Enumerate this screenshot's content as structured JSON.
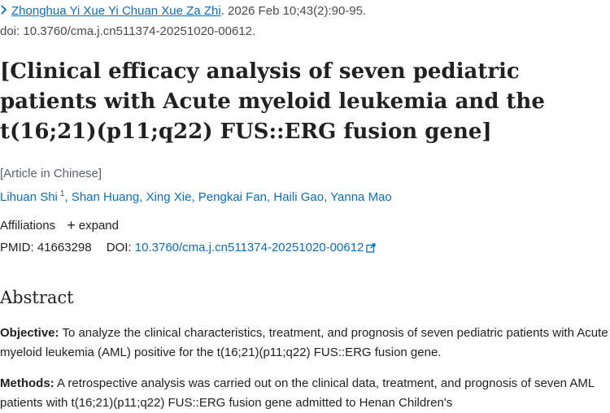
{
  "citation": {
    "journal": "Zhonghua Yi Xue Yi Chuan Xue Za Zhi",
    "details": ". 2026 Feb 10;43(2):90-95.",
    "doi_line": "doi: 10.3760/cma.j.cn511374-20251020-00612."
  },
  "title": "[Clinical efficacy analysis of seven pediatric patients with Acute myeloid leukemia and the t(16;21)(p11;q22) FUS::ERG fusion gene]",
  "language_note": "[Article in Chinese]",
  "authors": [
    {
      "name": "Lihuan Shi",
      "sup": "1"
    },
    {
      "name": "Shan Huang"
    },
    {
      "name": "Xing Xie"
    },
    {
      "name": "Pengkai Fan"
    },
    {
      "name": "Haili Gao"
    },
    {
      "name": "Yanna Mao"
    }
  ],
  "affiliations": {
    "label": "Affiliations",
    "expand": "expand"
  },
  "ids": {
    "pmid_label": "PMID:",
    "pmid": "41663298",
    "doi_label": "DOI:",
    "doi": "10.3760/cma.j.cn511374-20251020-00612"
  },
  "abstract": {
    "heading": "Abstract",
    "objective_label": "Objective:",
    "objective_text": "To analyze the clinical characteristics, treatment, and prognosis of seven pediatric patients with Acute myeloid leukemia (AML) positive for the t(16;21)(p11;q22) FUS::ERG fusion gene.",
    "methods_label": "Methods:",
    "methods_text": "A retrospective analysis was carried out on the clinical data, treatment, and prognosis of seven AML patients with t(16;21)(p11;q22) FUS::ERG fusion gene admitted to Henan Children's"
  },
  "colors": {
    "link": "#0a6ebd",
    "text": "#212121",
    "muted": "#5b616b"
  },
  "icons": {
    "journal_chevron": "chevron-right-icon",
    "affiliations_expand": "plus-icon",
    "doi_external": "external-link-icon"
  }
}
